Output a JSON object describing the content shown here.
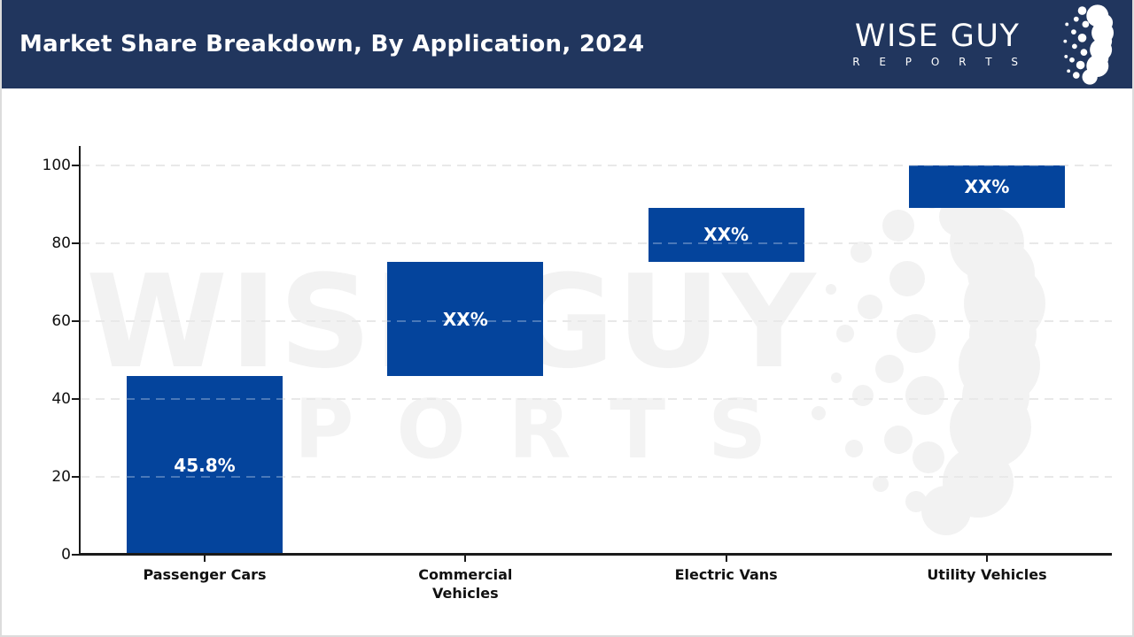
{
  "header": {
    "title": "Market Share Breakdown, By Application, 2024",
    "logo": {
      "line1": "WISE GUY",
      "line2": "R E P O R T S",
      "face_icon": "dotted-head-profile"
    }
  },
  "watermark": {
    "line1": "WISE GUY",
    "line2": "PORTS",
    "face_icon": "dotted-head-profile"
  },
  "colors": {
    "header_bg": "#21365e",
    "bar_fill": "#04449c",
    "bar_label_text": "#ffffff",
    "gridline": "#e0e0e0",
    "axis": "#1a1a1a",
    "watermark": "#f2f2f2",
    "frame_border": "#dcdcdc"
  },
  "chart_data": {
    "type": "bar",
    "subtype": "waterfall",
    "title": "Market Share Breakdown, By Application, 2024",
    "xlabel": "",
    "ylabel": "",
    "categories": [
      "Passenger Cars",
      "Commercial\nVehicles",
      "Electric Vans",
      "Utility Vehicles"
    ],
    "segments": [
      {
        "category": "Passenger Cars",
        "start": 0,
        "end": 45.8,
        "label": "45.8%"
      },
      {
        "category": "Commercial Vehicles",
        "start": 45.8,
        "end": 75.2,
        "label": "XX%"
      },
      {
        "category": "Electric Vans",
        "start": 75.2,
        "end": 89.2,
        "label": "XX%"
      },
      {
        "category": "Utility Vehicles",
        "start": 89.2,
        "end": 100,
        "label": "XX%"
      }
    ],
    "y_ticks": [
      0,
      20,
      40,
      60,
      80,
      100
    ],
    "ylim": [
      0,
      105
    ],
    "grid": "horizontal dashed",
    "legend": "none",
    "bar_color": "#04449c"
  }
}
